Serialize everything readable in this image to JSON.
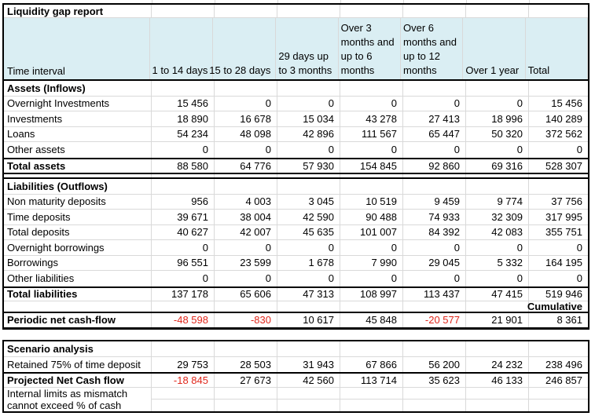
{
  "report": {
    "title": "Liquidity gap report"
  },
  "header": {
    "row_label": "Time interval",
    "columns": [
      {
        "name": "col-1-to-14-days",
        "lines": [
          "1 to 14 days"
        ]
      },
      {
        "name": "col-15-to-28-days",
        "lines": [
          "15 to 28 days"
        ]
      },
      {
        "name": "col-29-days-to-3-months",
        "lines": [
          "29 days up",
          "to 3 months"
        ]
      },
      {
        "name": "col-over-3-to-6-months",
        "lines": [
          "Over 3",
          "months and",
          "up to 6",
          "months"
        ]
      },
      {
        "name": "col-over-6-to-12-months",
        "lines": [
          "Over 6",
          "months and",
          "up to 12",
          "months"
        ]
      },
      {
        "name": "col-over-1-year",
        "lines": [
          "Over 1 year"
        ]
      },
      {
        "name": "col-total",
        "lines": [
          "Total"
        ]
      }
    ]
  },
  "main_table": {
    "rows": [
      {
        "name": "assets-section",
        "label": "Assets (Inflows)",
        "bold": true,
        "kind": "section",
        "values": null,
        "bottom": "thin"
      },
      {
        "name": "overnight-investments",
        "label": "Overnight Investments",
        "kind": "data",
        "values": [
          "15 456",
          "0",
          "0",
          "0",
          "0",
          "0",
          "15 456"
        ],
        "bottom": "thin"
      },
      {
        "name": "investments",
        "label": "Investments",
        "kind": "data",
        "values": [
          "18 890",
          "16 678",
          "15 034",
          "43 278",
          "27 413",
          "18 996",
          "140 289"
        ],
        "bottom": "thin"
      },
      {
        "name": "loans",
        "label": "Loans",
        "kind": "data",
        "values": [
          "54 234",
          "48 098",
          "42 896",
          "111 567",
          "65 447",
          "50 320",
          "372 562"
        ],
        "bottom": "thin"
      },
      {
        "name": "other-assets",
        "label": "Other assets",
        "kind": "data",
        "values": [
          "0",
          "0",
          "0",
          "0",
          "0",
          "0",
          "0"
        ],
        "bottom": "none"
      },
      {
        "name": "total-assets",
        "label": "Total assets",
        "bold": true,
        "kind": "data",
        "values": [
          "88 580",
          "64 776",
          "57 930",
          "154 845",
          "92 860",
          "69 316",
          "528 307"
        ],
        "top": "strong",
        "bottom": "none"
      },
      {
        "name": "section-spacer",
        "label": "",
        "kind": "spacer",
        "values": null,
        "top": "strong",
        "bottom": "strong"
      },
      {
        "name": "liabilities-section",
        "label": "Liabilities (Outflows)",
        "bold": true,
        "kind": "section",
        "values": null,
        "bottom": "thin"
      },
      {
        "name": "non-maturity-deposits",
        "label": "Non maturity deposits",
        "kind": "data",
        "values": [
          "956",
          "4 003",
          "3 045",
          "10 519",
          "9 459",
          "9 774",
          "37 756"
        ],
        "bottom": "thin"
      },
      {
        "name": "time-deposits",
        "label": "Time deposits",
        "kind": "data",
        "values": [
          "39 671",
          "38 004",
          "42 590",
          "90 488",
          "74 933",
          "32 309",
          "317 995"
        ],
        "bottom": "thin"
      },
      {
        "name": "total-deposits",
        "label": "Total deposits",
        "kind": "data",
        "values": [
          "40 627",
          "42 007",
          "45 635",
          "101 007",
          "84 392",
          "42 083",
          "355 751"
        ],
        "bottom": "thin"
      },
      {
        "name": "overnight-borrowings",
        "label": "Overnight borrowings",
        "kind": "data",
        "values": [
          "0",
          "0",
          "0",
          "0",
          "0",
          "0",
          "0"
        ],
        "bottom": "thin"
      },
      {
        "name": "borrowings",
        "label": "Borrowings",
        "kind": "data",
        "values": [
          "96 551",
          "23 599",
          "1 678",
          "7 990",
          "29 045",
          "5 332",
          "164 195"
        ],
        "bottom": "thin"
      },
      {
        "name": "other-liabilities",
        "label": "Other liabilities",
        "kind": "data",
        "values": [
          "0",
          "0",
          "0",
          "0",
          "0",
          "0",
          "0"
        ],
        "bottom": "none"
      },
      {
        "name": "total-liabilities",
        "label": "Total liabilities",
        "bold": true,
        "kind": "data",
        "values": [
          "137 178",
          "65 606",
          "47 313",
          "108 997",
          "113 437",
          "47 415",
          "519 946"
        ],
        "top": "strong",
        "bottom": "thin"
      },
      {
        "name": "cumulative-label-row",
        "label": "",
        "kind": "cum",
        "values": [
          "",
          "",
          "",
          "",
          "",
          "",
          "Cumulative"
        ],
        "bottom": "none"
      },
      {
        "name": "periodic-net-cash-flow",
        "label": "Periodic net cash-flow",
        "bold": true,
        "kind": "data",
        "values": [
          "-48 598",
          "-830",
          "10 617",
          "45 848",
          "-20 577",
          "21 901",
          "8 361"
        ],
        "top": "strong",
        "bottom": "none"
      }
    ]
  },
  "scenario_table": {
    "rows": [
      {
        "name": "scenario-section",
        "label": "Scenario analysis",
        "bold": true,
        "kind": "section",
        "values": null,
        "bottom": "thin"
      },
      {
        "name": "retained-time-deposit",
        "label": "Retained 75% of time deposit",
        "kind": "data",
        "values": [
          "29 753",
          "28 503",
          "31 943",
          "67 866",
          "56 200",
          "24 232",
          "238 496"
        ],
        "bottom": "none"
      },
      {
        "name": "projected-net-cash-flow",
        "label": "Projected Net Cash flow",
        "bold": true,
        "kind": "data",
        "values": [
          "-18 845",
          "27 673",
          "42 560",
          "113 714",
          "35 623",
          "46 133",
          "246 857"
        ],
        "top": "strong",
        "bottom": "thin"
      },
      {
        "name": "internal-limits-line-1",
        "label": "Internal limits as mismatch",
        "kind": "note1",
        "values": null,
        "bottom": "thin"
      },
      {
        "name": "internal-limits-line-2",
        "label": "cannot exceed % of cash",
        "kind": "note2",
        "values": null,
        "bottom": "none"
      }
    ]
  },
  "colors": {
    "header_bg": "#DAEEF3",
    "negative_text": "#E0261A",
    "gridline": "#D9D9D9",
    "border": "#000000"
  }
}
